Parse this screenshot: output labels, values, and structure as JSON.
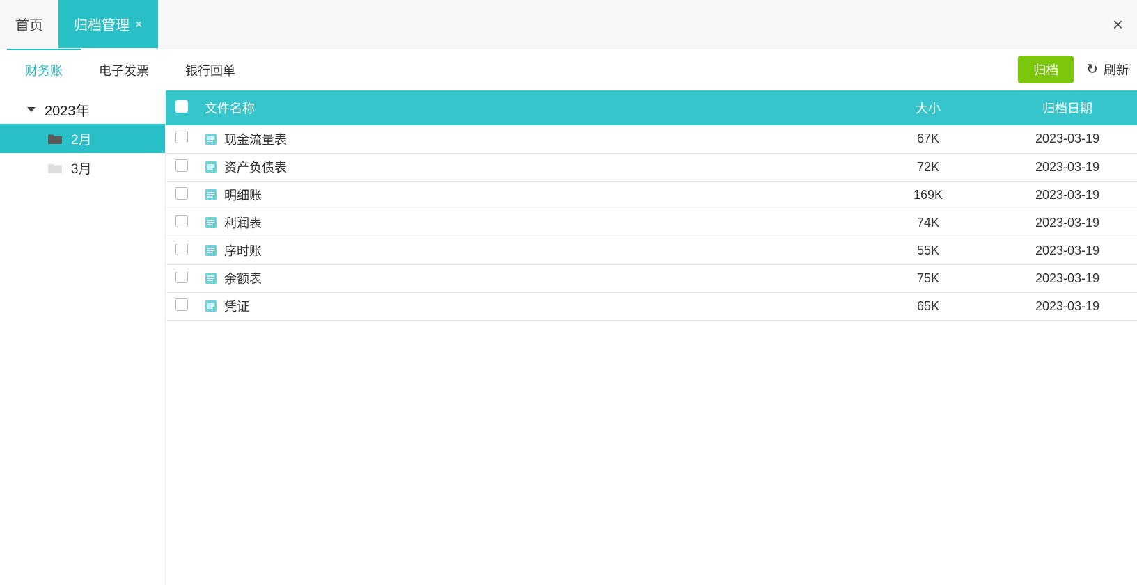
{
  "colors": {
    "accent": "#29c0c7",
    "table_header": "#37c5cc",
    "archive_btn": "#7ac70c",
    "row_border": "#e8e8e8",
    "page_bg": "#f8f8f8",
    "doc_icon": "#6fd3d9"
  },
  "page_tabs": {
    "items": [
      {
        "label": "首页",
        "active": false,
        "closable": false
      },
      {
        "label": "归档管理",
        "active": true,
        "closable": true
      }
    ]
  },
  "module_tabs": {
    "items": [
      {
        "label": "财务账",
        "active": true
      },
      {
        "label": "电子发票",
        "active": false
      },
      {
        "label": "银行回单",
        "active": false
      }
    ]
  },
  "actions": {
    "archive_label": "归档",
    "refresh_label": "刷新"
  },
  "tree": {
    "year_label": "2023年",
    "months": [
      {
        "label": "2月",
        "selected": true
      },
      {
        "label": "3月",
        "selected": false
      }
    ]
  },
  "table": {
    "columns": {
      "name": "文件名称",
      "size": "大小",
      "date": "归档日期"
    },
    "rows": [
      {
        "name": "现金流量表",
        "size": "67K",
        "date": "2023-03-19"
      },
      {
        "name": "资产负债表",
        "size": "72K",
        "date": "2023-03-19"
      },
      {
        "name": "明细账",
        "size": "169K",
        "date": "2023-03-19"
      },
      {
        "name": "利润表",
        "size": "74K",
        "date": "2023-03-19"
      },
      {
        "name": "序时账",
        "size": "55K",
        "date": "2023-03-19"
      },
      {
        "name": "余额表",
        "size": "75K",
        "date": "2023-03-19"
      },
      {
        "name": "凭证",
        "size": "65K",
        "date": "2023-03-19"
      }
    ]
  }
}
